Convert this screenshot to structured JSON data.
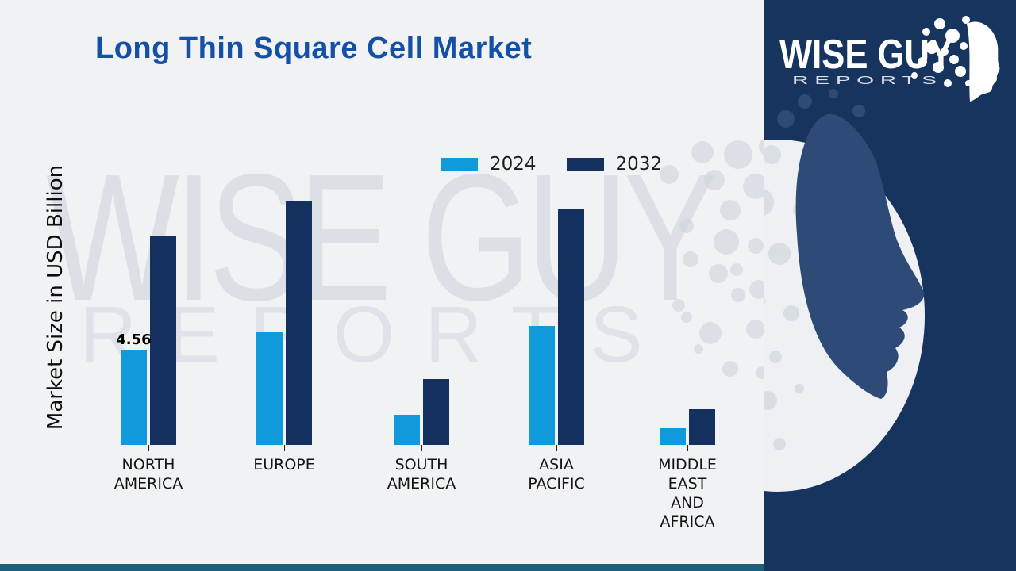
{
  "title": {
    "text": "Long Thin Square Cell Market",
    "color": "#1450a5"
  },
  "y_axis_label": "Market Size in USD Billion",
  "chart_data": {
    "type": "bar",
    "title": "Long Thin Square Cell Market",
    "ylabel": "Market Size in USD Billion",
    "xlabel": "",
    "unit": "USD Billion",
    "categories": [
      "NORTH AMERICA",
      "EUROPE",
      "SOUTH AMERICA",
      "ASIA PACIFIC",
      "MIDDLE EAST AND AFRICA"
    ],
    "series": [
      {
        "name": "2024",
        "color": "#109adc",
        "values": [
          4.56,
          5.4,
          1.45,
          5.7,
          0.8
        ]
      },
      {
        "name": "2032",
        "color": "#13305f",
        "values": [
          10.0,
          11.7,
          3.15,
          11.3,
          1.7
        ]
      }
    ],
    "data_labels": [
      {
        "series": "2024",
        "category": "NORTH AMERICA",
        "text": "4.56"
      }
    ],
    "ylim": [
      0,
      12.5
    ],
    "grid": false,
    "legend_position": "top-center"
  },
  "watermark": {
    "line1": "WISE GUY",
    "line2": "REPORTS"
  },
  "logo": {
    "line1": "WISE GUY",
    "line2": "R E P O R T S"
  },
  "colors": {
    "background": "#f1f2f3",
    "panel_navy": "#16345e",
    "face_navy": "#2e4b78",
    "bubble_head": "#eef0f3",
    "footer_teal": "#1b5f78",
    "series_2024": "#109adc",
    "series_2032": "#13305f"
  }
}
